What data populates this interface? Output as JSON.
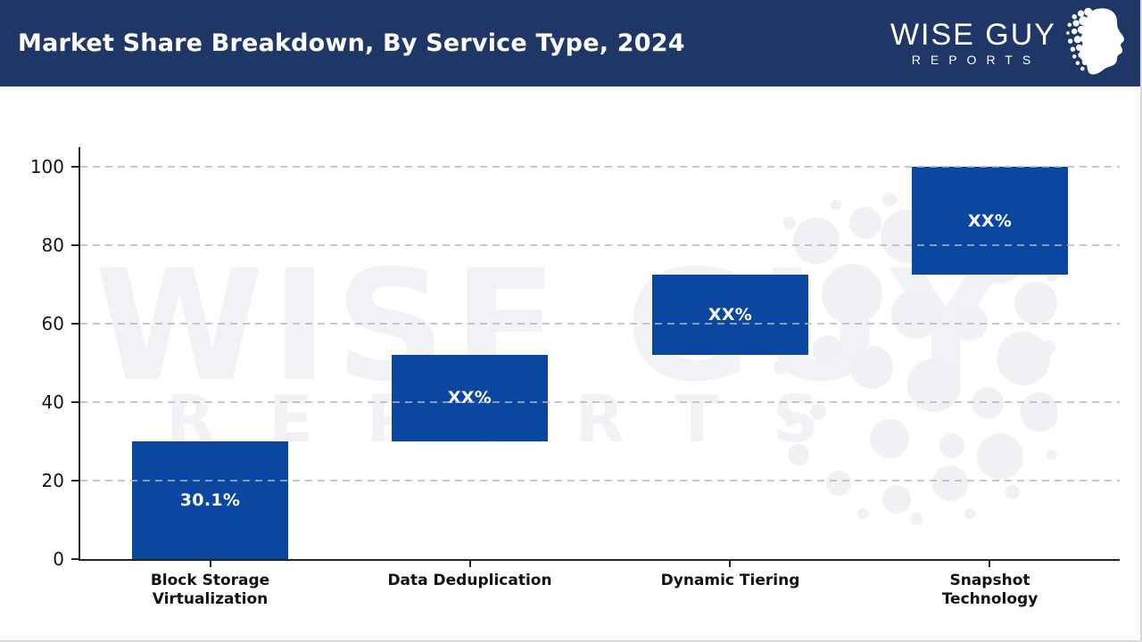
{
  "header": {
    "title": "Market Share Breakdown, By Service Type, 2024",
    "bg_color": "#1f3766",
    "logo": {
      "line1": "WISE GUY",
      "line2": "REPORTS"
    }
  },
  "watermark": {
    "line1": "WISE GUY",
    "line2": "REPORTS"
  },
  "chart_data": {
    "type": "bar",
    "variant": "waterfall-floating-bars",
    "title": "Market Share Breakdown, By Service Type, 2024",
    "categories": [
      "Block Storage\nVirtualization",
      "Data Deduplication",
      "Dynamic Tiering",
      "Snapshot\nTechnology"
    ],
    "segments": [
      {
        "category": "Block Storage Virtualization",
        "start": 0,
        "end": 30.1,
        "label": "30.1%"
      },
      {
        "category": "Data Deduplication",
        "start": 30.1,
        "end": 52,
        "label": "XX%"
      },
      {
        "category": "Dynamic Tiering",
        "start": 52,
        "end": 72.5,
        "label": "XX%"
      },
      {
        "category": "Snapshot Technology",
        "start": 72.5,
        "end": 100,
        "label": "XX%"
      }
    ],
    "yticks": [
      0,
      20,
      40,
      60,
      80,
      100
    ],
    "ylim": [
      0,
      105
    ],
    "xlabel": "",
    "ylabel": "",
    "legend": "none",
    "grid": {
      "axis": "y",
      "style": "dashed",
      "color": "#d9d9d9",
      "drawn_over_bars": true
    },
    "bar_color": "#0b47a0",
    "bar_label_color": "#ffffff",
    "axis_color": "#262626"
  }
}
